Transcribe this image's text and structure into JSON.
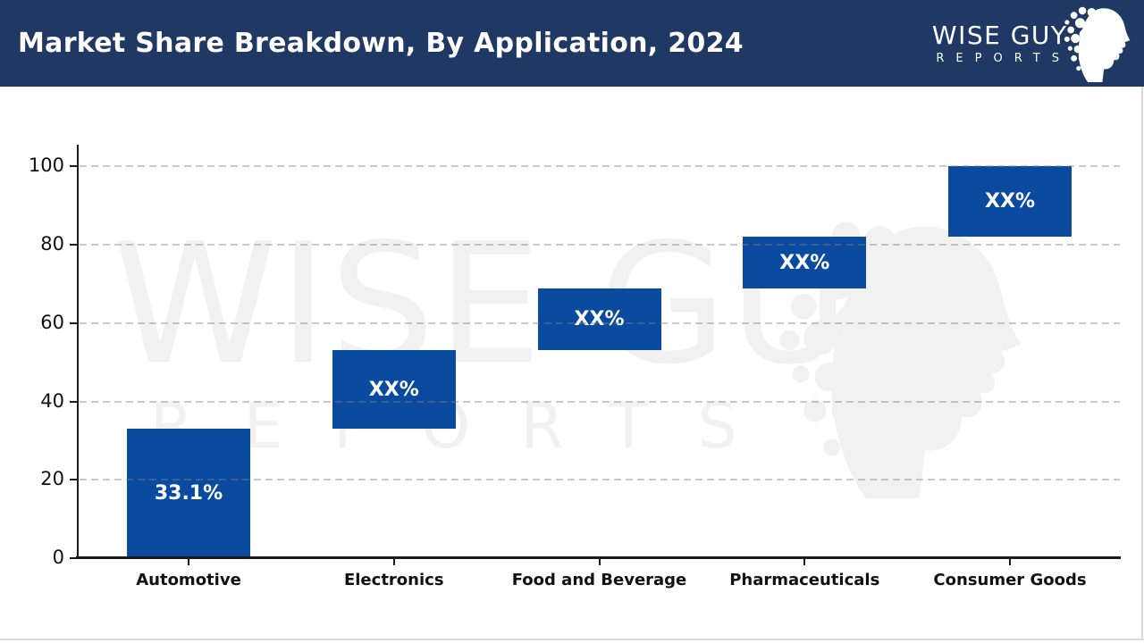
{
  "header": {
    "title": "Market Share Breakdown, By Application, 2024",
    "logo": {
      "line1": "WISE GUY",
      "line2": "REPORTS",
      "icon": "dotted-head-profile"
    }
  },
  "watermark": {
    "line1": "WISE GUY",
    "line2": "REPORTS",
    "icon": "dotted-head-profile"
  },
  "colors": {
    "header-bg": "#1f3864",
    "bar": "#0a4b9f",
    "bar-label": "#ffffff",
    "axis": "#1a1a1a",
    "grid": "#d2d2d2",
    "watermark": "#f1f1f1"
  },
  "chart_data": {
    "type": "bar",
    "subtype": "waterfall",
    "title": "Market Share Breakdown, By Application, 2024",
    "categories": [
      "Automotive",
      "Electronics",
      "Food and Beverage",
      "Pharmaceuticals",
      "Consumer Goods"
    ],
    "segments": [
      {
        "category": "Automotive",
        "start": 0,
        "end": 33.1,
        "label": "33.1%"
      },
      {
        "category": "Electronics",
        "start": 33.1,
        "end": 53.0,
        "label": "XX%"
      },
      {
        "category": "Food and Beverage",
        "start": 53.0,
        "end": 68.8,
        "label": "XX%"
      },
      {
        "category": "Pharmaceuticals",
        "start": 68.8,
        "end": 82.0,
        "label": "XX%"
      },
      {
        "category": "Consumer Goods",
        "start": 82.0,
        "end": 100.0,
        "label": "XX%"
      }
    ],
    "y_ticks": [
      0,
      20,
      40,
      60,
      80,
      100
    ],
    "ylim": [
      0,
      105
    ],
    "xlabel": "",
    "ylabel": "",
    "grid": "dashed-horizontal",
    "legend": "none"
  }
}
